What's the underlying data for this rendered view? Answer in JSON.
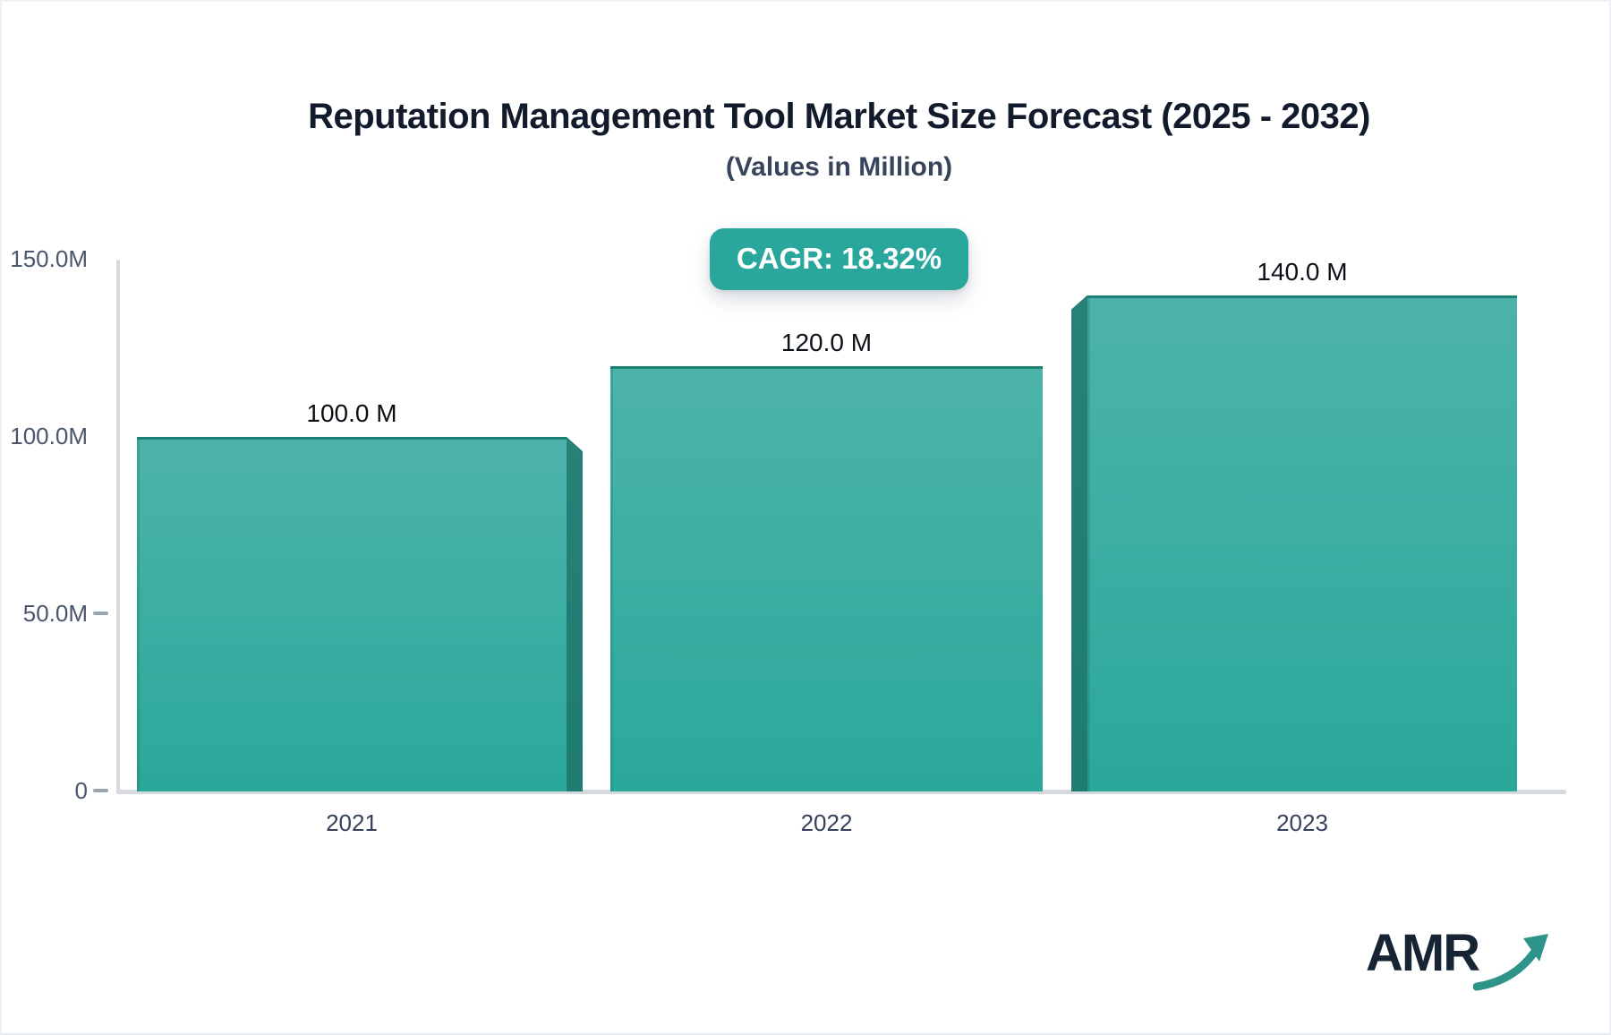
{
  "header": {
    "title": "Reputation Management Tool Market Size Forecast (2025 - 2032)",
    "subtitle": "(Values in Million)",
    "cagr_badge": "CAGR: 18.32%"
  },
  "chart_data": {
    "type": "bar",
    "categories": [
      "2021",
      "2022",
      "2023"
    ],
    "values": [
      100,
      120,
      140
    ],
    "value_labels": [
      "100.0 M",
      "120.0 M",
      "140.0 M"
    ],
    "title": "Reputation Management Tool Market Size Forecast (2025 - 2032)",
    "subtitle": "(Values in Million)",
    "annotation": "CAGR: 18.32%",
    "xlabel": "",
    "ylabel": "",
    "ylim": [
      0,
      150
    ],
    "yticks": [
      {
        "label": "150.0M",
        "value": 150,
        "tick": false
      },
      {
        "label": "100.0M",
        "value": 100,
        "tick": false
      },
      {
        "label": "50.0M",
        "value": 50,
        "tick": true
      },
      {
        "label": "0",
        "value": 0,
        "tick": true
      }
    ],
    "grid": false,
    "legend": false,
    "bar_style": "3d-extruded-gradient"
  },
  "colors": {
    "bar_top": "#4db3aa",
    "bar_bottom": "#2aa89a",
    "bar_side": "#1f7c70",
    "bar_edge": "#1a8175",
    "badge_bg": "#2aa79c",
    "axis_color": "#d6d9de",
    "tick_color": "#9aa4b1",
    "title_color": "#111b2b",
    "subtitle_color": "#37445c",
    "ylabel_color": "#49566c",
    "xlabel_color": "#36425a",
    "value_color": "#0b1016",
    "logo_color": "#162434",
    "logo_arrow": "#2e9389"
  },
  "footer": {
    "logo_text": "AMR",
    "logo_arrow_icon": "trending-up-arrow"
  }
}
